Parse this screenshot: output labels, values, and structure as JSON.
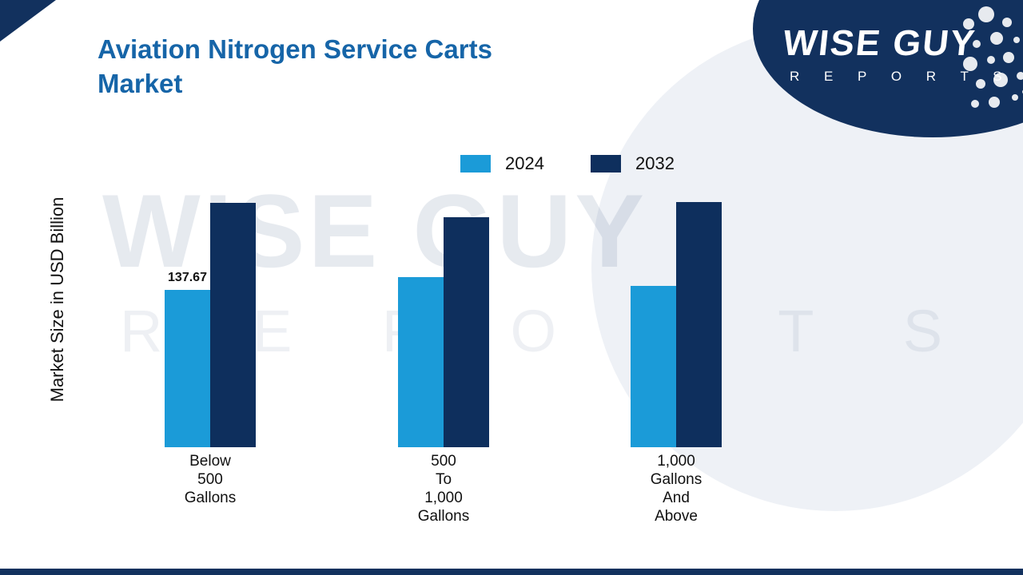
{
  "header": {
    "title_line1": "Aviation Nitrogen Service Carts",
    "title_line2": "Market"
  },
  "logo": {
    "line1": "WISE GUY",
    "line2": "R E P O R T S"
  },
  "watermark": {
    "line1": "WISE GUY",
    "line2": "R E P O R T S"
  },
  "colors": {
    "title_blue": "#1665a8",
    "accent_navy": "#12315e",
    "bar_2024": "#1b9bd8",
    "bar_2032": "#0e2f5d"
  },
  "chart_data": {
    "type": "bar",
    "title": "Aviation Nitrogen Service Carts Market",
    "xlabel": "",
    "ylabel": "Market Size in USD Billion",
    "categories": [
      "Below 500 Gallons",
      "500 To 1,000 Gallons",
      "1,000 Gallons And Above"
    ],
    "categories_multiline": [
      [
        "Below",
        "500",
        "Gallons"
      ],
      [
        "500",
        "To",
        "1,000",
        "Gallons"
      ],
      [
        "1,000",
        "Gallons",
        "And",
        "Above"
      ]
    ],
    "series": [
      {
        "name": "2024",
        "color": "#1b9bd8",
        "values": [
          137.67,
          148.3,
          140.6
        ]
      },
      {
        "name": "2032",
        "color": "#0e2f5d",
        "values": [
          213.6,
          201.1,
          214.3
        ]
      }
    ],
    "data_labels": [
      {
        "series": "2024",
        "category_index": 0,
        "text": "137.67"
      }
    ],
    "ylim": [
      0,
      230
    ],
    "grid": false,
    "legend_position": "top"
  }
}
